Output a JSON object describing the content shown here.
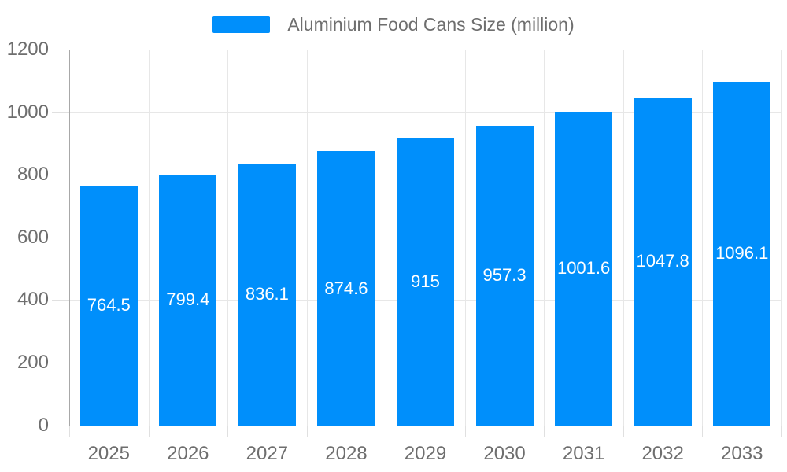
{
  "chart_data": {
    "type": "bar",
    "title": "Aluminium Food Cans Size (million)",
    "legend": {
      "position": "top",
      "items": [
        {
          "label": "Aluminium Food Cans Size (million)"
        }
      ]
    },
    "categories": [
      "2025",
      "2026",
      "2027",
      "2028",
      "2029",
      "2030",
      "2031",
      "2032",
      "2033"
    ],
    "series": [
      {
        "name": "Aluminium Food Cans Size (million)",
        "values": [
          764.5,
          799.4,
          836.1,
          874.6,
          915,
          957.3,
          1001.6,
          1047.8,
          1096.1
        ]
      }
    ],
    "data_labels": [
      "764.5",
      "799.4",
      "836.1",
      "874.6",
      "915",
      "957.3",
      "1001.6",
      "1047.8",
      "1096.1"
    ],
    "xlabel": "",
    "ylabel": "",
    "ylim": [
      0,
      1200
    ],
    "y_ticks": [
      0,
      200,
      400,
      600,
      800,
      1000,
      1200
    ],
    "grid": true,
    "colors": {
      "bar": "#008FFB",
      "grid": "#e7e7e7",
      "tick": "#e0e0e0",
      "axis": "#a8a8a8",
      "label": "#6e6e6e",
      "value_label": "#ffffff"
    }
  }
}
